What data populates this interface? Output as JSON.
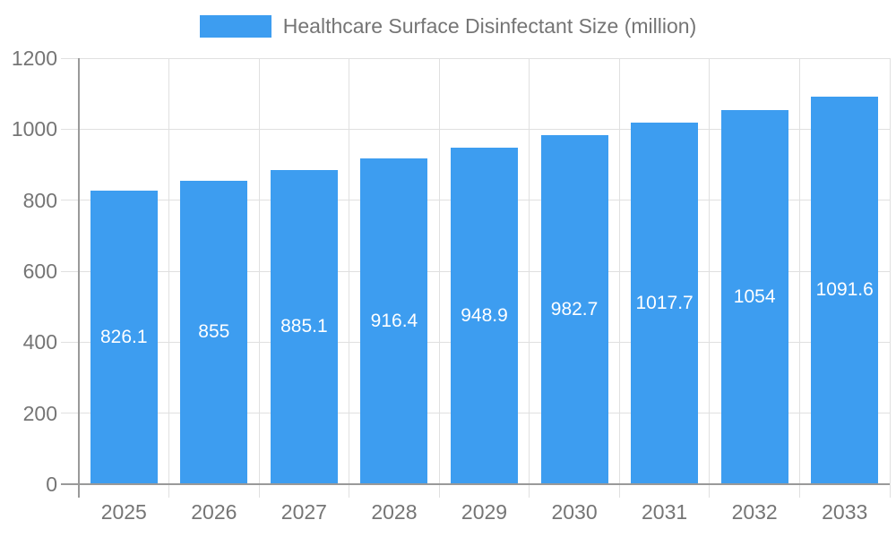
{
  "chart_data": {
    "type": "bar",
    "title": "Healthcare Surface Disinfectant Size (million)",
    "legend": {
      "label": "Healthcare Surface Disinfectant Size (million)",
      "position": "top"
    },
    "categories": [
      "2025",
      "2026",
      "2027",
      "2028",
      "2029",
      "2030",
      "2031",
      "2032",
      "2033"
    ],
    "series": [
      {
        "name": "Healthcare Surface Disinfectant Size (million)",
        "values": [
          826.1,
          855,
          885.1,
          916.4,
          948.9,
          982.7,
          1017.7,
          1054,
          1091.6
        ],
        "value_labels": [
          "826.1",
          "855",
          "885.1",
          "916.4",
          "948.9",
          "982.7",
          "1017.7",
          "1054",
          "1091.6"
        ]
      }
    ],
    "xlabel": "",
    "ylabel": "",
    "ylim": [
      0,
      1200
    ],
    "yticks": [
      0,
      200,
      400,
      600,
      800,
      1000,
      1200
    ],
    "grid": true,
    "value_labels_position": "inside-center",
    "colors": {
      "bar": "#3D9DF0",
      "grid": "#E0E0E0",
      "axis": "#999999",
      "tick_text": "#757575",
      "value_label_text": "#FFFFFF",
      "background": "#FFFFFF"
    }
  }
}
